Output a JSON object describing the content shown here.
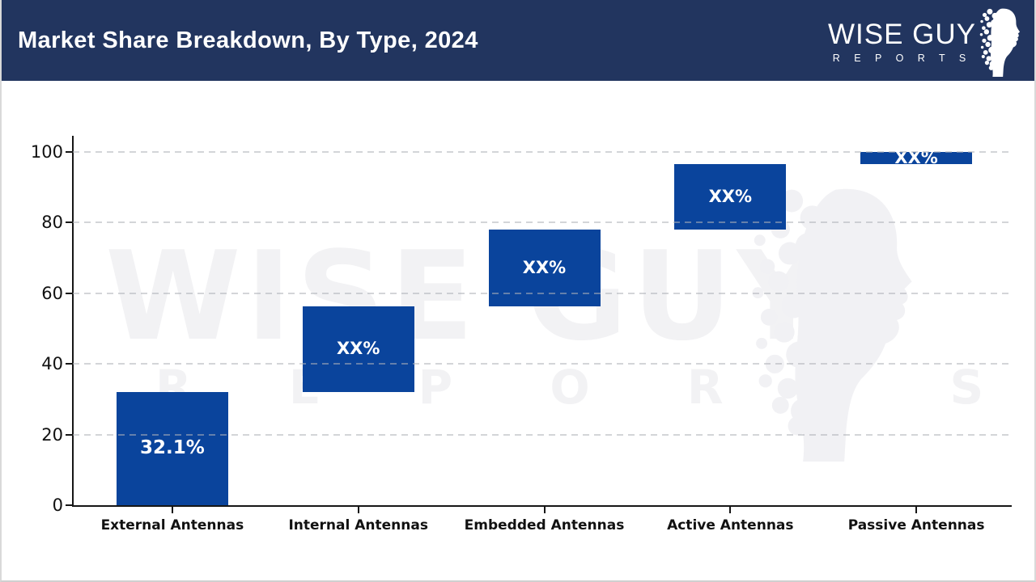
{
  "header": {
    "title": "Market Share Breakdown, By Type, 2024",
    "logo": {
      "line1": "WISE GUY",
      "line2": "R E P O R T S"
    }
  },
  "watermark": {
    "line1": "WISE GUY",
    "line2": "R E P O R T S"
  },
  "colors": {
    "header_bg": "#22355f",
    "bar": "#0a449c",
    "axis": "#161616",
    "grid": "#c6c9cf",
    "watermark": "#f2f2f4",
    "bar_label": "#ffffff"
  },
  "chart_data": {
    "type": "bar",
    "subtype": "waterfall",
    "title": "Market Share Breakdown, By Type, 2024",
    "xlabel": "",
    "ylabel": "",
    "ylim": [
      0,
      104.5
    ],
    "yticks": [
      0,
      20,
      40,
      60,
      80,
      100
    ],
    "grid": "horizontal dashed",
    "legend": "none",
    "categories": [
      "External Antennas",
      "Internal Antennas",
      "Embedded Antennas",
      "Active Antennas",
      "Passive Antennas"
    ],
    "segments": [
      {
        "category": "External Antennas",
        "start": 0,
        "end": 32.1,
        "value": 32.1,
        "label": "32.1%"
      },
      {
        "category": "Internal Antennas",
        "start": 32.1,
        "end": 56.4,
        "value": 24.3,
        "label": "XX%"
      },
      {
        "category": "Embedded Antennas",
        "start": 56.4,
        "end": 78.0,
        "value": 21.6,
        "label": "XX%"
      },
      {
        "category": "Active Antennas",
        "start": 78.0,
        "end": 96.5,
        "value": 18.5,
        "label": "XX%"
      },
      {
        "category": "Passive Antennas",
        "start": 96.5,
        "end": 100.0,
        "value": 3.5,
        "label": "XX%"
      }
    ]
  }
}
